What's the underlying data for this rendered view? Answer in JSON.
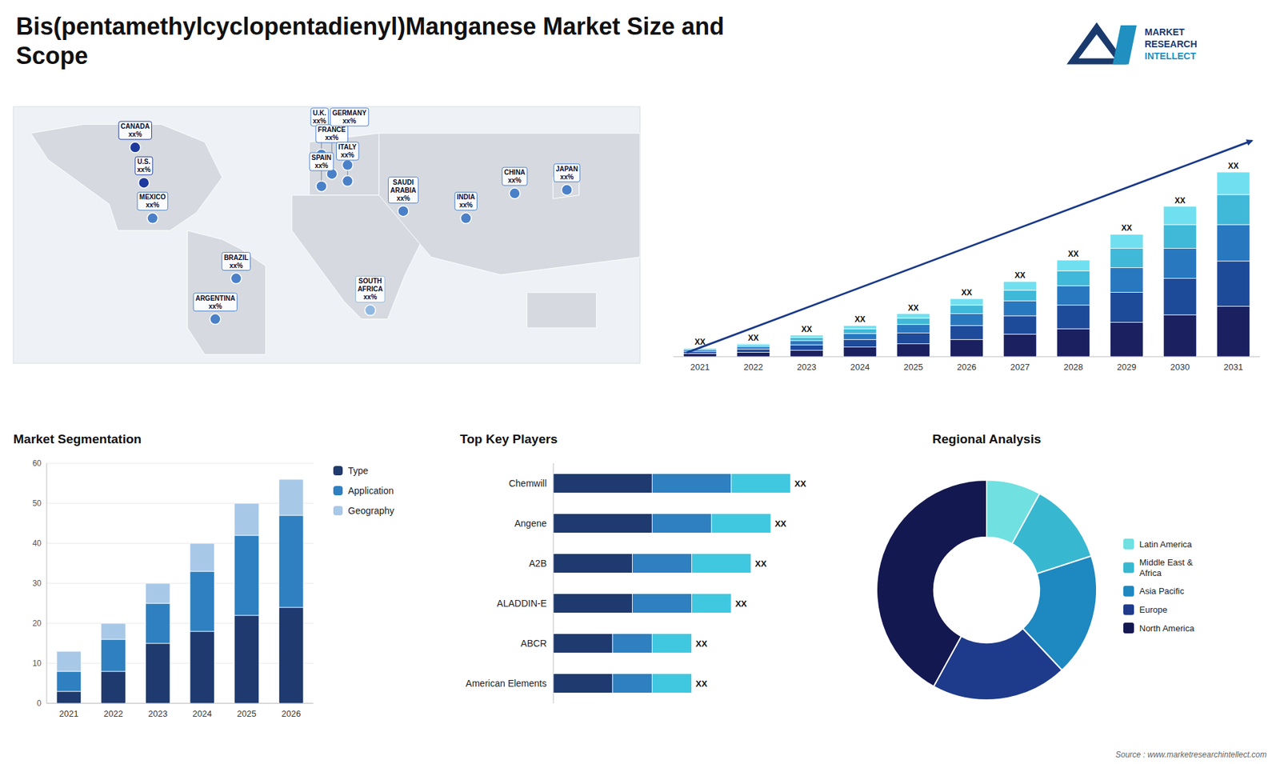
{
  "title": "Bis(pentamethylcyclopentadienyl)Manganese Market Size and\nScope",
  "source": "Source : www.marketresearchintellect.com",
  "logo": [
    "MARKET",
    "RESEARCH",
    "INTELLECT"
  ],
  "chart_data": [
    {
      "type": "map",
      "categories": [
        "CANADA\nxx%",
        "U.S.\nxx%",
        "MEXICO\nxx%",
        "BRAZIL\nxx%",
        "ARGENTINA\nxx%",
        "U.K.\nxx%",
        "FRANCE\nxx%",
        "SPAIN\nxx%",
        "GERMANY\nxx%",
        "ITALY\nxx%",
        "SAUDI\nARABIA\nxx%",
        "SOUTH\nAFRICA\nxx%",
        "CHINA\nxx%",
        "INDIA\nxx%",
        "JAPAN\nxx%"
      ],
      "x": [
        -110,
        -105,
        -100,
        -52,
        -64,
        -3,
        3,
        -3,
        12,
        12,
        44,
        25,
        108,
        80,
        138
      ],
      "y": [
        62,
        42,
        22,
        -12,
        -35,
        58,
        47,
        40,
        52,
        43,
        26,
        -30,
        36,
        22,
        38
      ],
      "colors": [
        "#1e3a9e",
        "#1e3a9e",
        "#4a80c8",
        "#4a80c8",
        "#4a80c8",
        "#4a80c8",
        "#4a80c8",
        "#4a80c8",
        "#4a80c8",
        "#4a80c8",
        "#4a80c8",
        "#90b8e0",
        "#4a80c8",
        "#4a80c8",
        "#4a80c8"
      ],
      "xlim": [
        -180,
        180
      ],
      "ylim": [
        -60,
        85
      ],
      "tick_labels": false
    },
    {
      "type": "bar",
      "stacked": true,
      "categories": [
        "2021",
        "2022",
        "2023",
        "2024",
        "2025",
        "2026",
        "2027",
        "2028",
        "2029",
        "2030",
        "2031"
      ],
      "series": [
        {
          "color": "#1a2060",
          "values": [
            1.5,
            2.0,
            3.0,
            4.5,
            6.0,
            8.0,
            10.5,
            13.0,
            16.0,
            19.5,
            23.5
          ]
        },
        {
          "color": "#1e4a9a",
          "values": [
            1.0,
            1.5,
            2.5,
            3.5,
            5.0,
            6.5,
            8.5,
            11.0,
            14.0,
            17.0,
            21.0
          ]
        },
        {
          "color": "#2878c0",
          "values": [
            0.8,
            1.2,
            2.0,
            2.8,
            4.0,
            5.5,
            7.0,
            9.0,
            11.5,
            14.0,
            17.0
          ]
        },
        {
          "color": "#40b8d8",
          "values": [
            0.5,
            0.8,
            1.5,
            2.2,
            3.0,
            4.0,
            5.0,
            7.0,
            9.0,
            11.0,
            14.0
          ]
        },
        {
          "color": "#70e0f0",
          "values": [
            0.2,
            0.5,
            1.0,
            1.5,
            2.0,
            3.0,
            4.0,
            5.0,
            6.5,
            8.5,
            10.5
          ]
        }
      ],
      "ylim": [
        0,
        111.8
      ],
      "tick_labels": "x",
      "annotations": [
        "XX",
        "XX",
        "XX",
        "XX",
        "XX",
        "XX",
        "XX",
        "XX",
        "XX",
        "XX",
        "XX"
      ]
    },
    {
      "type": "bar",
      "title": "Market Segmentation",
      "stacked": true,
      "categories": [
        "2021",
        "2022",
        "2023",
        "2024",
        "2025",
        "2026"
      ],
      "series": [
        {
          "name": "Type",
          "color": "#1e3a6e",
          "values": [
            3,
            8,
            15,
            18,
            22,
            24
          ]
        },
        {
          "name": "Application",
          "color": "#2e80c0",
          "values": [
            5,
            8,
            10,
            15,
            20,
            23
          ]
        },
        {
          "name": "Geography",
          "color": "#a8c8e8",
          "values": [
            5,
            4,
            5,
            7,
            8,
            9
          ]
        }
      ],
      "ylim": [
        0,
        60
      ],
      "yticks": [
        0,
        10,
        20,
        30,
        40,
        50,
        60
      ],
      "grid": true,
      "legend": "right"
    },
    {
      "type": "bar",
      "title": "Top Key Players",
      "orientation": "horizontal",
      "stacked": true,
      "categories": [
        "Chemwill",
        "Angene",
        "A2B",
        "ALADDIN-E",
        "ABCR",
        "American Elements"
      ],
      "series": [
        {
          "color": "#1e3a6e",
          "values": [
            5,
            5,
            4,
            4,
            3,
            3
          ]
        },
        {
          "color": "#2e80c0",
          "values": [
            4,
            3,
            3,
            3,
            2,
            2
          ]
        },
        {
          "color": "#40c8e0",
          "values": [
            3,
            3,
            3,
            2,
            2,
            2
          ]
        }
      ],
      "xlim": [
        0,
        14.5
      ],
      "tick_labels": "y",
      "annotations": [
        "XX",
        "XX",
        "XX",
        "XX",
        "XX",
        "XX"
      ]
    },
    {
      "type": "donut",
      "title": "Regional Analysis",
      "categories": [
        "Latin America",
        "Middle East &\nAfrica",
        "Asia Pacific",
        "Europe",
        "North America"
      ],
      "values": [
        8,
        12,
        18,
        20,
        42
      ],
      "colors": [
        "#70e0e0",
        "#38b8d0",
        "#1e88c0",
        "#1e3a8a",
        "#141850"
      ],
      "legend": "right"
    }
  ]
}
